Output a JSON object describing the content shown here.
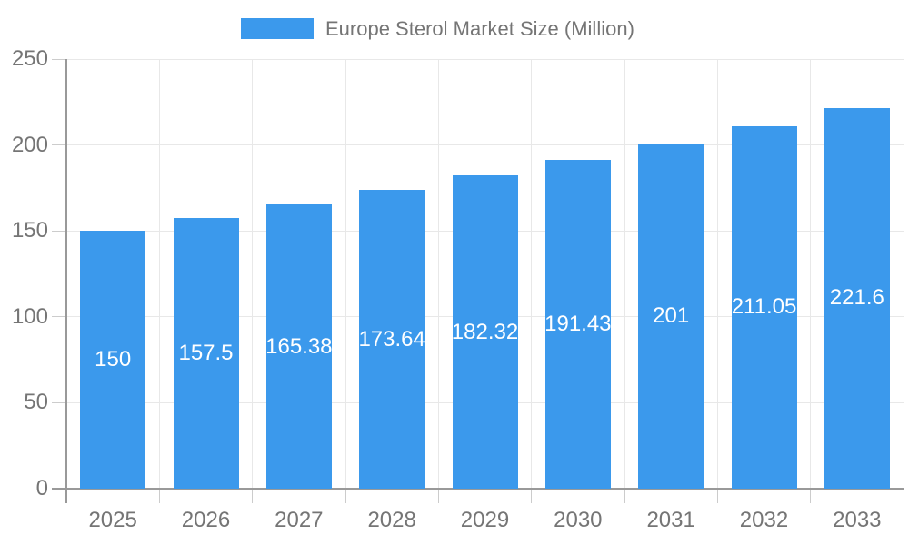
{
  "legend": {
    "label": "Europe Sterol Market Size (Million)"
  },
  "colors": {
    "bar": "#3B99EC",
    "grid": "#E8E8E8",
    "axis": "#999999",
    "tick": "#CCCCCC",
    "axis_text": "#757575",
    "bar_label_text": "#FFFFFF",
    "background": "#FFFFFF"
  },
  "chart_data": {
    "type": "bar",
    "title": "Europe Sterol Market Size (Million)",
    "categories": [
      "2025",
      "2026",
      "2027",
      "2028",
      "2029",
      "2030",
      "2031",
      "2032",
      "2033"
    ],
    "values": [
      150,
      157.5,
      165.38,
      173.64,
      182.32,
      191.43,
      201,
      211.05,
      221.6
    ],
    "value_labels": [
      "150",
      "157.5",
      "165.38",
      "173.64",
      "182.32",
      "191.43",
      "201",
      "211.05",
      "221.6"
    ],
    "xlabel": "",
    "ylabel": "",
    "ylim": [
      0,
      250
    ],
    "ytick_step": 50,
    "ytick_labels": [
      "0",
      "50",
      "100",
      "150",
      "200",
      "250"
    ],
    "grid": true,
    "legend_position": "top",
    "bar_label_position": "inside-center"
  }
}
